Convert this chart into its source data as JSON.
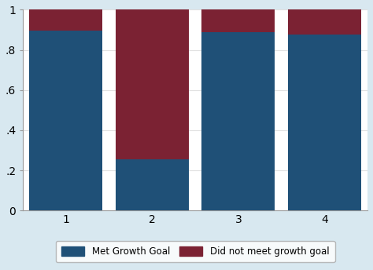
{
  "categories": [
    1,
    2,
    3,
    4
  ],
  "met_goal": [
    0.895,
    0.255,
    0.89,
    0.875
  ],
  "did_not_meet": [
    0.105,
    0.745,
    0.11,
    0.125
  ],
  "color_met": "#1f5077",
  "color_not_met": "#7b2233",
  "legend_met": "Met Growth Goal",
  "legend_not_met": "Did not meet growth goal",
  "ylim": [
    0,
    1.0
  ],
  "yticks": [
    0,
    0.2,
    0.4,
    0.6,
    0.8,
    1.0
  ],
  "ytick_labels": [
    "0",
    ".2",
    ".4",
    ".6",
    ".8",
    "1"
  ],
  "xticks": [
    1,
    2,
    3,
    4
  ],
  "bar_width": 0.85,
  "background_color": "#d8e8f0",
  "plot_bg_color": "#ffffff",
  "grid_color": "#e0e0e0"
}
